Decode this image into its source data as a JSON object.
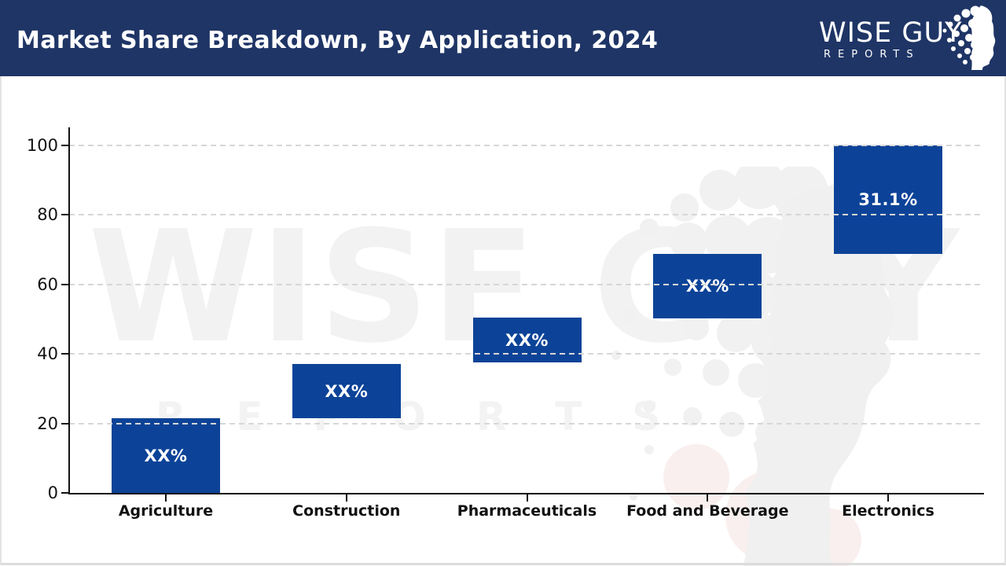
{
  "header": {
    "title": "Market Share Breakdown, By Application, 2024",
    "logo": {
      "wordmark": "WISE GUY",
      "subtext": "REPORTS"
    }
  },
  "watermark": {
    "wordmark": "WISE GUY",
    "subtext": "REPORTS"
  },
  "chart_data": {
    "type": "bar",
    "subtype": "floating-waterfall",
    "title": "Market Share Breakdown, By Application, 2024",
    "categories": [
      "Agriculture",
      "Construction",
      "Pharmaceuticals",
      "Food and Beverage",
      "Electronics"
    ],
    "bars": [
      {
        "category": "Agriculture",
        "start": 0,
        "end": 21.4,
        "label": "XX%"
      },
      {
        "category": "Construction",
        "start": 21.4,
        "end": 37.1,
        "label": "XX%"
      },
      {
        "category": "Pharmaceuticals",
        "start": 37.4,
        "end": 50.4,
        "label": "XX%"
      },
      {
        "category": "Food and Beverage",
        "start": 50.2,
        "end": 68.8,
        "label": "XX%"
      },
      {
        "category": "Electronics",
        "start": 68.8,
        "end": 99.9,
        "label": "31.1%"
      }
    ],
    "yticks": [
      0,
      20,
      40,
      60,
      80,
      100
    ],
    "ylim": [
      0,
      105
    ],
    "xlabel": "",
    "ylabel": "",
    "grid": "horizontal-dashed",
    "grid_above_bars": true,
    "legend": "none",
    "bar_color": "#0c4398",
    "bar_label_color": "#ffffff"
  },
  "colors": {
    "header_bg": "#1f3566",
    "header_text": "#ffffff",
    "bar": "#0c4398",
    "axis": "#111111",
    "grid": "#d7d7d7",
    "watermark": "#f2f2f2",
    "page_border": "#e0e0e0"
  }
}
